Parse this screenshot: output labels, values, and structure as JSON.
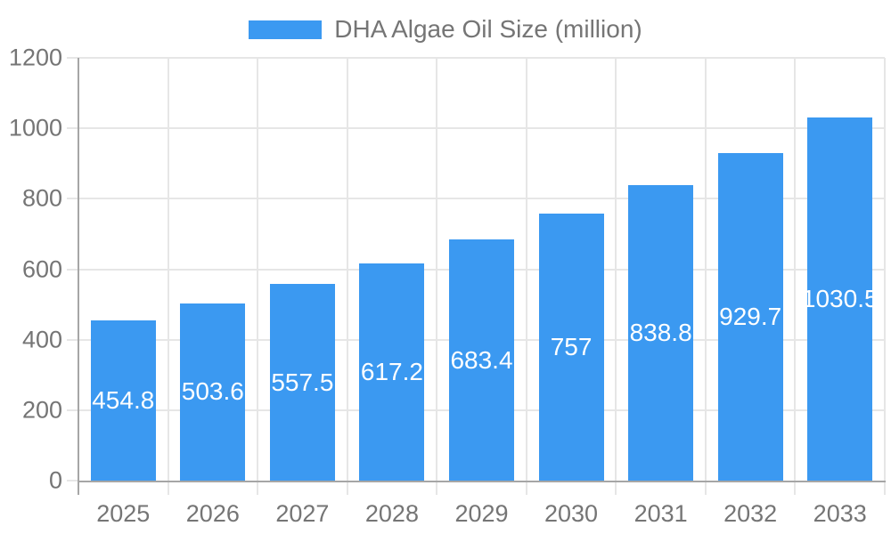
{
  "legend": {
    "label": "DHA Algae Oil Size (million)"
  },
  "colors": {
    "bar": "#3b99f1",
    "axis": "#a6a6a6",
    "grid": "#e6e6e6",
    "tick_text": "#757575",
    "value_text": "#ffffff",
    "background": "#ffffff"
  },
  "chart_data": {
    "type": "bar",
    "title": "DHA Algae Oil Size (million)",
    "categories": [
      "2025",
      "2026",
      "2027",
      "2028",
      "2029",
      "2030",
      "2031",
      "2032",
      "2033"
    ],
    "values": [
      454.8,
      503.6,
      557.5,
      617.2,
      683.4,
      757,
      838.8,
      929.7,
      1030.5
    ],
    "value_labels": [
      "454.8",
      "503.6",
      "557.5",
      "617.2",
      "683.4",
      "757",
      "838.8",
      "929.7",
      "1030.5"
    ],
    "xlabel": "",
    "ylabel": "",
    "ylim": [
      0,
      1200
    ],
    "yticks": [
      0,
      200,
      400,
      600,
      800,
      1000,
      1200
    ],
    "grid": true,
    "legend_position": "top",
    "value_label_position": "inside-center"
  }
}
